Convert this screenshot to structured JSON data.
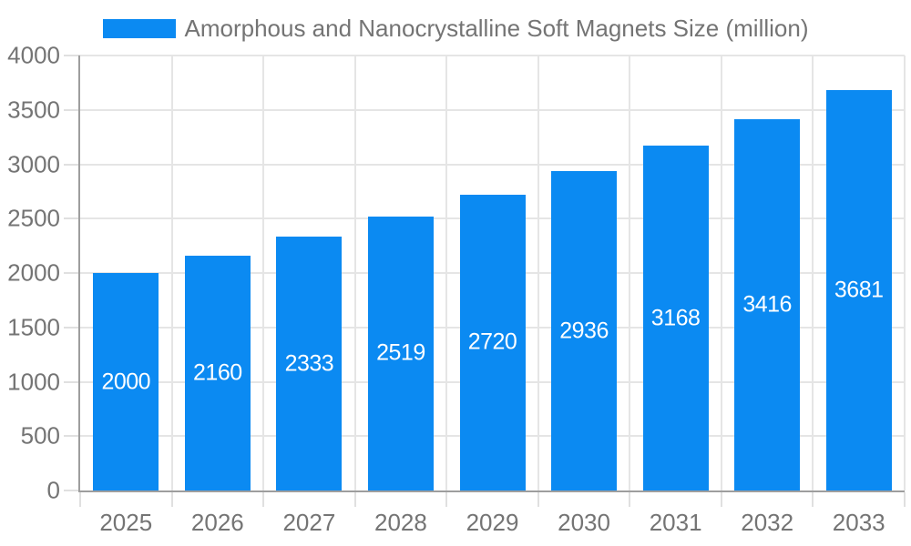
{
  "chart_data": {
    "type": "bar",
    "title": "Amorphous and Nanocrystalline Soft Magnets Size (million)",
    "categories": [
      "2025",
      "2026",
      "2027",
      "2028",
      "2029",
      "2030",
      "2031",
      "2032",
      "2033"
    ],
    "values": [
      2000,
      2160,
      2333,
      2519,
      2720,
      2936,
      3168,
      3416,
      3681
    ],
    "series": [
      {
        "name": "Amorphous and Nanocrystalline Soft Magnets Size (million)",
        "values": [
          2000,
          2160,
          2333,
          2519,
          2720,
          2936,
          3168,
          3416,
          3681
        ]
      }
    ],
    "xlabel": "",
    "ylabel": "",
    "ylim": [
      0,
      4000
    ],
    "ytick_step": 500,
    "ytick_labels": [
      "0",
      "500",
      "1000",
      "1500",
      "2000",
      "2500",
      "3000",
      "3500",
      "4000"
    ],
    "grid": true,
    "legend_position": "top",
    "value_label_position": "inside-center",
    "colors": {
      "bar": "#0b8af2",
      "grid": "#e5e5e5",
      "axis": "#9e9e9e",
      "text": "#747474",
      "value_label": "#ffffff",
      "background": "#ffffff"
    }
  }
}
